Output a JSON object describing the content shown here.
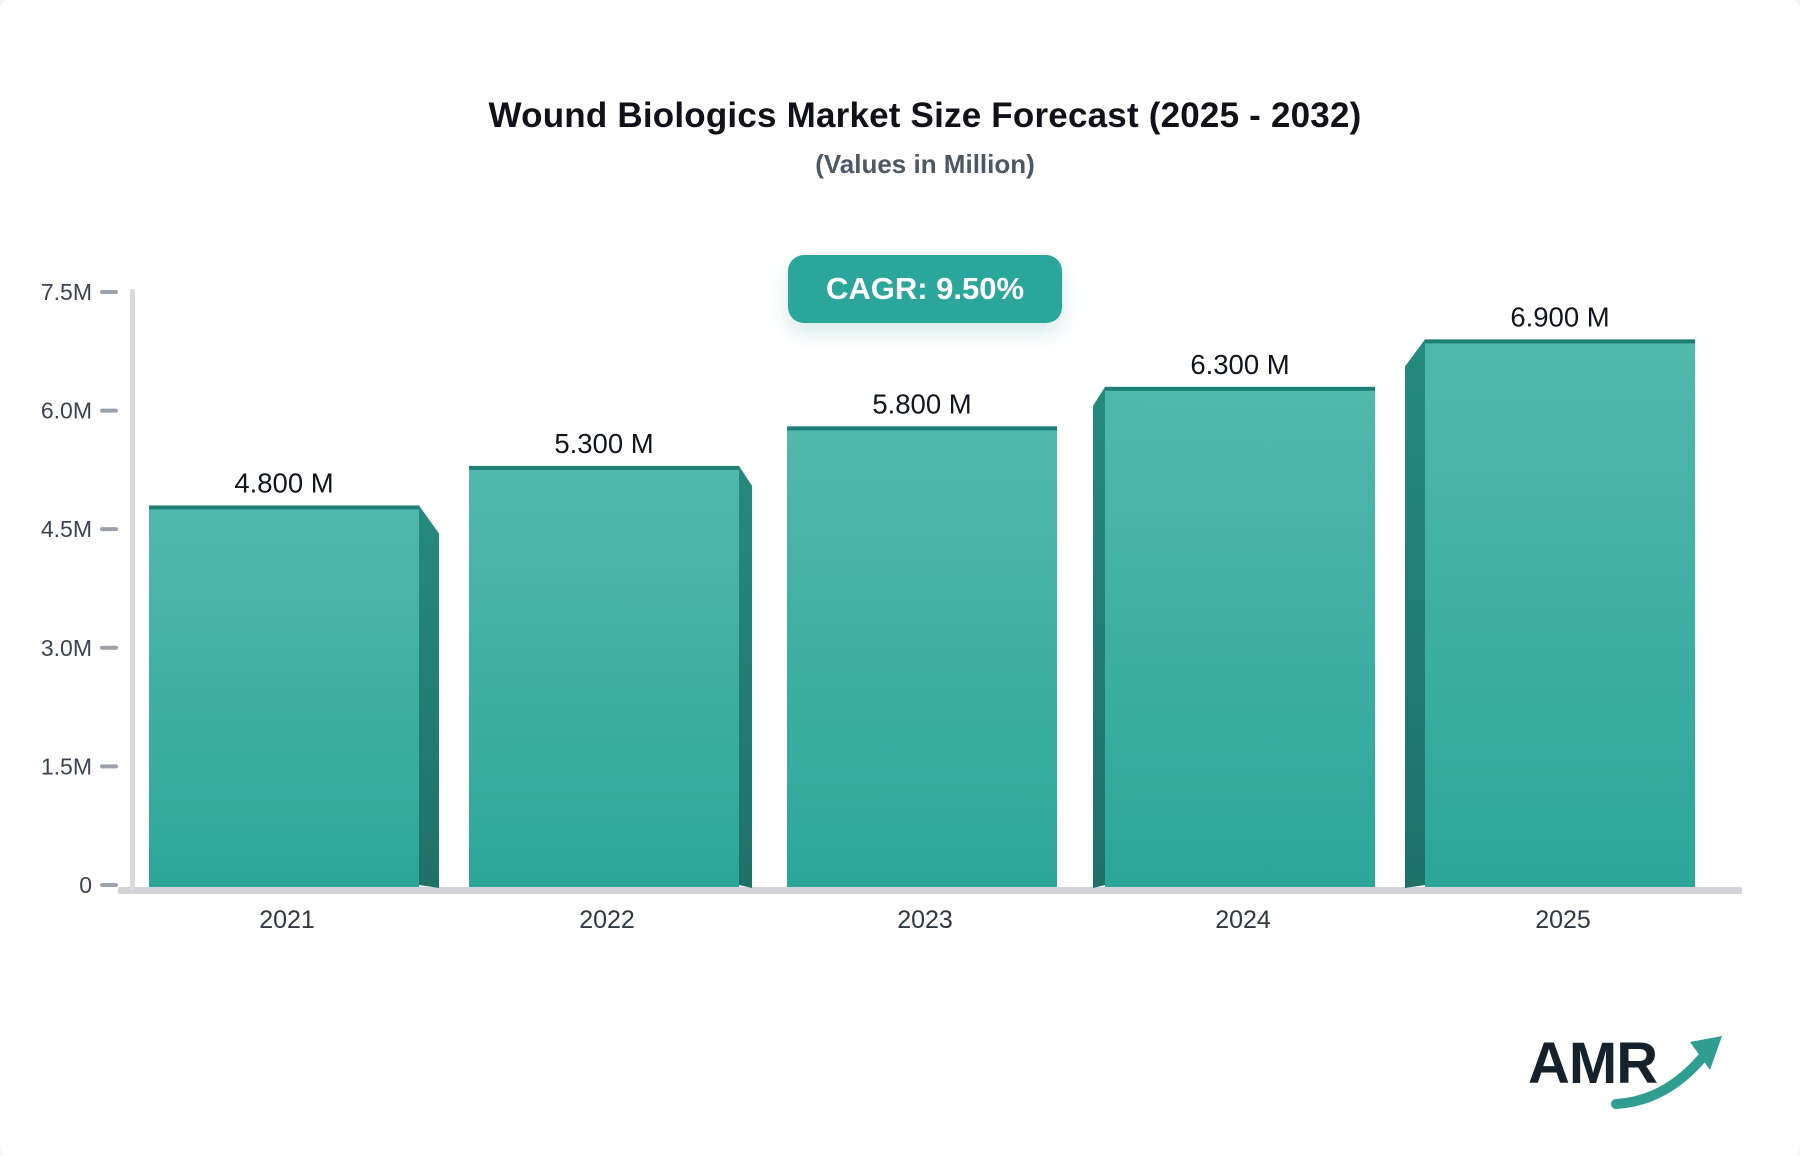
{
  "header": {
    "title": "Wound Biologics Market Size Forecast (2025 - 2032)",
    "subtitle": "(Values in Million)",
    "cagr_label": "CAGR: 9.50%"
  },
  "chart_data": {
    "type": "bar",
    "title": "Wound Biologics Market Size Forecast (2025 - 2032)",
    "subtitle": "(Values in Million)",
    "cagr": "9.50%",
    "categories": [
      "2021",
      "2022",
      "2023",
      "2024",
      "2025"
    ],
    "values": [
      4.8,
      5.3,
      5.8,
      6.3,
      6.9
    ],
    "value_labels": [
      "4.800 M",
      "5.300 M",
      "5.800 M",
      "6.300 M",
      "6.900 M"
    ],
    "xlabel": "",
    "ylabel": "",
    "ylim": [
      0,
      7.5
    ],
    "yticks": [
      {
        "value": 0,
        "label": "0"
      },
      {
        "value": 1.5,
        "label": "1.5M"
      },
      {
        "value": 3,
        "label": "3.0M"
      },
      {
        "value": 4.5,
        "label": "4.5M"
      },
      {
        "value": 6,
        "label": "6.0M"
      },
      {
        "value": 7.5,
        "label": "7.5M"
      }
    ],
    "grid": false,
    "legend": false,
    "bar_style": "3d-extruded teal bars with center vanishing point"
  },
  "colors": {
    "accent_teal": "#2aa79a",
    "bar_face_top": "#52b8ac",
    "bar_face_bottom": "#2ca699",
    "bar_side_top": "#268a7f",
    "bar_side_bottom": "#1f7168",
    "bar_top_edge": "#1d8076",
    "axis_line": "#d8dae0",
    "baseline": "#d2d4da",
    "tick_dash": "#9aa2ae",
    "tick_label": "#3c4453",
    "x_label": "#2f3845",
    "value_label": "#10151f",
    "badge_bg": "#2aa79a",
    "badge_text": "#ffffff",
    "logo_text": "#15222b",
    "logo_arrow": "#2f9e91"
  },
  "footer": {
    "logo_text": "AMR"
  }
}
